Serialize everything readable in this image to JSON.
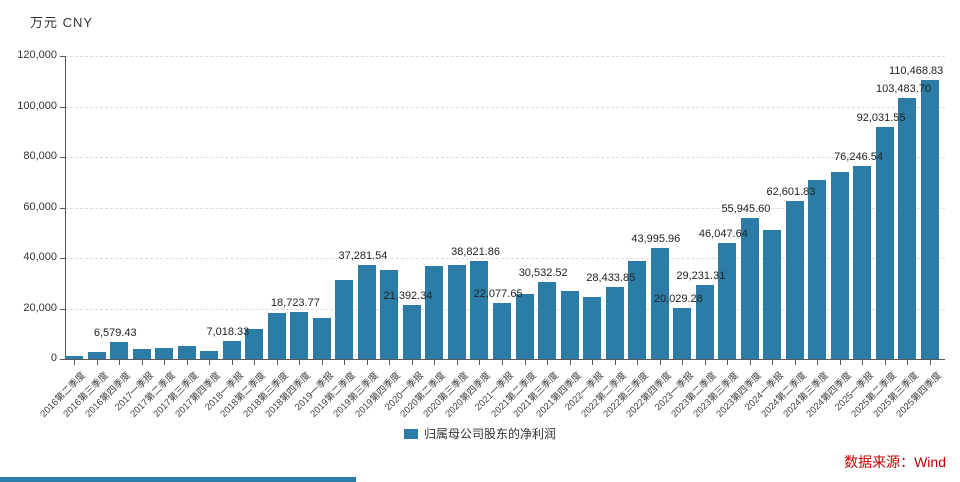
{
  "unit_label": "万元 CNY",
  "legend": {
    "label": "归属母公司股东的净利润",
    "color": "#2b7da7"
  },
  "source_note": "数据来源：Wind",
  "chart_data": {
    "type": "bar",
    "title": "",
    "xlabel": "",
    "ylabel": "万元 CNY",
    "ylim": [
      0,
      120000
    ],
    "y_tick_values": [
      0,
      20000,
      40000,
      60000,
      80000,
      100000,
      120000
    ],
    "y_tick_labels": [
      "0",
      "20,000",
      "40,000",
      "60,000",
      "80,000",
      "100,000",
      "120,000"
    ],
    "grid": "horizontal-dashed",
    "legend_position": "bottom-center",
    "bar_color": "#2b7da7",
    "source_color": "#c00000",
    "categories": [
      "2016第二季度",
      "2016第三季度",
      "2016第四季度",
      "2017一季报",
      "2017第二季度",
      "2017第三季度",
      "2017第四季度",
      "2018一季报",
      "2018第二季度",
      "2018第三季度",
      "2018第四季度",
      "2019一季报",
      "2019第二季度",
      "2019第三季度",
      "2019第四季度",
      "2020一季报",
      "2020第二季度",
      "2020第三季度",
      "2020第四季度",
      "2021一季报",
      "2021第二季度",
      "2021第三季度",
      "2021第四季度",
      "2022一季报",
      "2022第二季度",
      "2022第三季度",
      "2022第四季度",
      "2023一季报",
      "2023第二季度",
      "2023第三季度",
      "2023第四季度",
      "2024一季报",
      "2024第二季度",
      "2024第三季度",
      "2024第四季度",
      "2025一季报",
      "2025第二季度",
      "2025第三季度",
      "2025第四季度"
    ],
    "values": [
      1200,
      2600,
      6579.43,
      3900,
      4300,
      5100,
      3300,
      7018.33,
      11800,
      18300,
      18723.77,
      16200,
      31300,
      37281.54,
      35200,
      21392.34,
      36900,
      37250,
      38821.86,
      22077.65,
      25800,
      30532.52,
      27000,
      24700,
      28433.85,
      38700,
      43995.96,
      20029.28,
      29231.31,
      46047.64,
      55945.6,
      51200,
      62601.83,
      70800,
      74000,
      76246.54,
      92031.55,
      103483.7,
      110468.83
    ],
    "data_labels": [
      null,
      null,
      "6,579.43",
      null,
      null,
      null,
      null,
      "7,018.33",
      null,
      null,
      "18,723.77",
      null,
      null,
      "37,281.54",
      null,
      "21,392.34",
      null,
      null,
      "38,821.86",
      "22,077.65",
      null,
      "30,532.52",
      null,
      null,
      "28,433.85",
      null,
      "43,995.96",
      "20,029.28",
      "29,231.31",
      "46,047.64",
      "55,945.60",
      null,
      "62,601.83",
      null,
      null,
      "76,246.54",
      "92,031.55",
      "103,483.70",
      "110,468.83"
    ]
  }
}
